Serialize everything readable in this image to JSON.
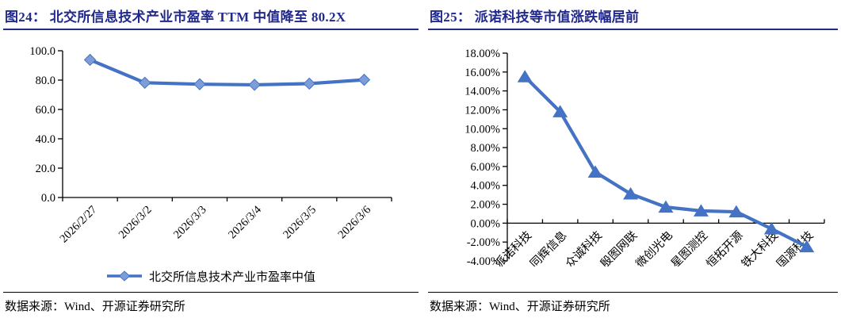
{
  "colors": {
    "accent": "#22298C",
    "line": "#4472C4",
    "marker_fill": "#7C9DD7",
    "axis": "#000000"
  },
  "chart_data": [
    {
      "type": "line",
      "title": "图24：  北交所信息技术产业市盈率 TTM 中值降至 80.2X",
      "categories": [
        "2026/2/27",
        "2026/3/2",
        "2026/3/3",
        "2026/3/4",
        "2026/3/5",
        "2026/3/6"
      ],
      "series": [
        {
          "name": "北交所信息技术产业市盈率中值",
          "values": [
            93.8,
            78.2,
            77.2,
            76.8,
            77.6,
            80.2
          ]
        }
      ],
      "marker": "diamond",
      "ylim": [
        0,
        100
      ],
      "yticks": [
        0,
        20,
        40,
        60,
        80,
        100
      ],
      "ytick_labels": [
        "0.0",
        "20.0",
        "40.0",
        "60.0",
        "80.0",
        "100.0"
      ],
      "xtick_side": "outside",
      "grid": "off",
      "legend_position": "bottom",
      "source": "数据来源：Wind、开源证券研究所"
    },
    {
      "type": "line",
      "title": "图25：  派诺科技等市值涨跌幅居前",
      "categories": [
        "派诺科技",
        "同辉信息",
        "众诚科技",
        "殷图网联",
        "微创光电",
        "星图测控",
        "恒拓开源",
        "铁大科技",
        "国源科技"
      ],
      "series": [
        {
          "name": "市值涨跌幅",
          "values": [
            15.5,
            11.8,
            5.4,
            3.1,
            1.7,
            1.3,
            1.2,
            -0.6,
            -2.5
          ]
        }
      ],
      "marker": "triangle",
      "ylim": [
        -4,
        18
      ],
      "yticks": [
        -4,
        -2,
        0,
        2,
        4,
        6,
        8,
        10,
        12,
        14,
        16,
        18
      ],
      "ytick_labels": [
        "-4.00%",
        "-2.00%",
        "0.00%",
        "2.00%",
        "4.00%",
        "6.00%",
        "8.00%",
        "10.00%",
        "12.00%",
        "14.00%",
        "16.00%",
        "18.00%"
      ],
      "xtick_side": "inside",
      "grid": "off",
      "legend_position": "none",
      "source": "数据来源：Wind、开源证券研究所"
    }
  ]
}
